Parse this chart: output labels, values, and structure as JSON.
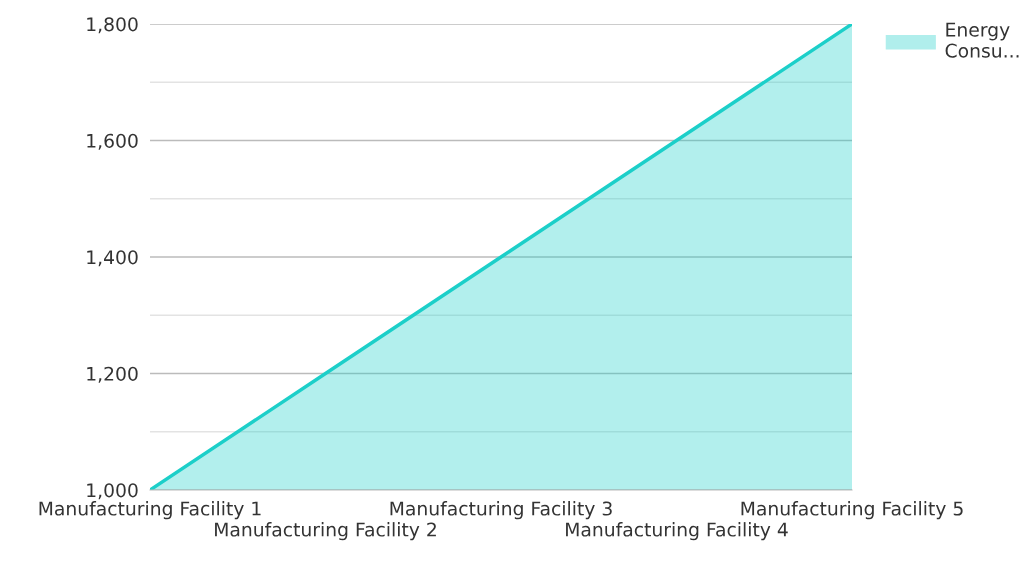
{
  "chart_data": {
    "type": "area",
    "categories": [
      "Manufacturing Facility 1",
      "Manufacturing Facility 2",
      "Manufacturing Facility 3",
      "Manufacturing Facility 4",
      "Manufacturing Facility 5"
    ],
    "series": [
      {
        "name": "Energy Consu...",
        "color": "#1ccfc9",
        "values": [
          1000,
          1200,
          1400,
          1600,
          1800
        ]
      }
    ],
    "ylim": [
      1000,
      1800
    ],
    "yticks": [
      {
        "value": 1000,
        "label": "1,000"
      },
      {
        "value": 1100,
        "label": null
      },
      {
        "value": 1200,
        "label": "1,200"
      },
      {
        "value": 1300,
        "label": null
      },
      {
        "value": 1400,
        "label": "1,400"
      },
      {
        "value": 1500,
        "label": null
      },
      {
        "value": 1600,
        "label": "1,600"
      },
      {
        "value": 1700,
        "label": null
      },
      {
        "value": 1800,
        "label": "1,800"
      }
    ],
    "grid": "y",
    "legend": "top right",
    "marker": "none",
    "line_style": "solid"
  }
}
